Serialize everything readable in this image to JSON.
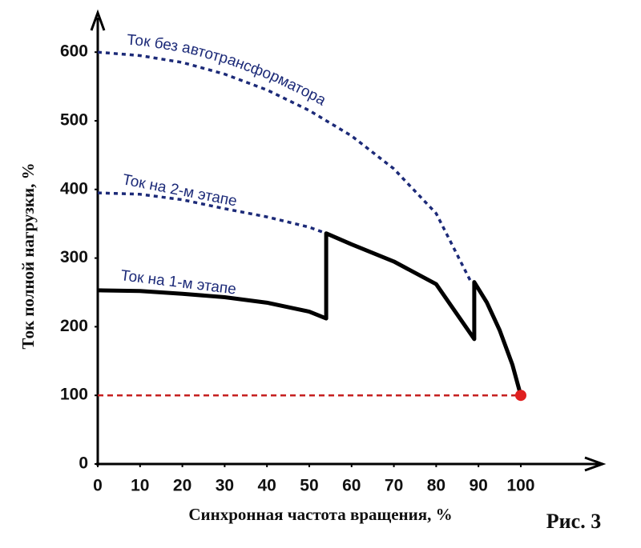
{
  "chart_data": {
    "type": "line",
    "xlabel": "Синхронная частота вращения, %",
    "ylabel": "Ток полной нагрузки, %",
    "caption": "Рис. 3",
    "xlim": [
      0,
      118
    ],
    "ylim": [
      0,
      655
    ],
    "xticks": [
      0,
      10,
      20,
      30,
      40,
      50,
      60,
      70,
      80,
      90,
      100
    ],
    "yticks": [
      0,
      100,
      200,
      300,
      400,
      500,
      600
    ],
    "series": [
      {
        "name": "Ток без автотрансформатора",
        "color": "#1c2a78",
        "style": "dotted",
        "x": [
          0,
          10,
          20,
          30,
          40,
          50,
          60,
          70,
          80,
          88
        ],
        "values": [
          600,
          595,
          585,
          568,
          545,
          515,
          478,
          430,
          365,
          268
        ]
      },
      {
        "name": "Ток на 2-м этапе",
        "color": "#1c2a78",
        "style": "dotted",
        "x": [
          0,
          10,
          20,
          30,
          40,
          50,
          54
        ],
        "values": [
          395,
          393,
          385,
          372,
          360,
          345,
          336
        ]
      },
      {
        "name": "Ток на 1-м этапе",
        "color": "#000000",
        "style": "solid",
        "x": [
          0,
          10,
          20,
          30,
          40,
          50,
          54,
          54,
          60,
          70,
          80,
          89,
          89,
          92,
          95,
          98,
          100
        ],
        "values": [
          253,
          252,
          248,
          243,
          235,
          222,
          212,
          336,
          320,
          295,
          262,
          182,
          265,
          235,
          195,
          145,
          100
        ]
      }
    ],
    "hline": {
      "y": 100,
      "color": "#c62020"
    },
    "marker": {
      "x": 100,
      "y": 100,
      "color": "#e02020"
    }
  }
}
